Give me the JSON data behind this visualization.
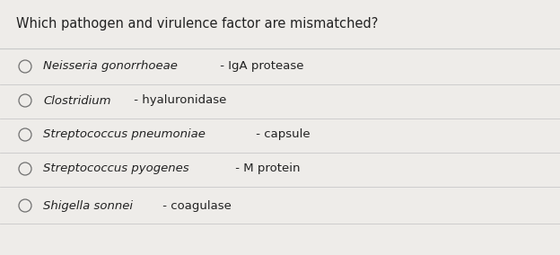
{
  "title": "Which pathogen and virulence factor are mismatched?",
  "italic_parts": [
    "Neisseria gonorrhoeae",
    "Clostridium",
    "Streptococcus pneumoniae",
    "Streptococcus pyogenes",
    "Shigella sonnei"
  ],
  "normal_parts": [
    " - IgA protease",
    " - hyaluronidase",
    " - capsule",
    " - M protein",
    " - coagulase"
  ],
  "bg_color": "#eeece9",
  "text_color": "#222222",
  "title_fontsize": 10.5,
  "option_fontsize": 9.5,
  "line_color": "#c8c8c8"
}
